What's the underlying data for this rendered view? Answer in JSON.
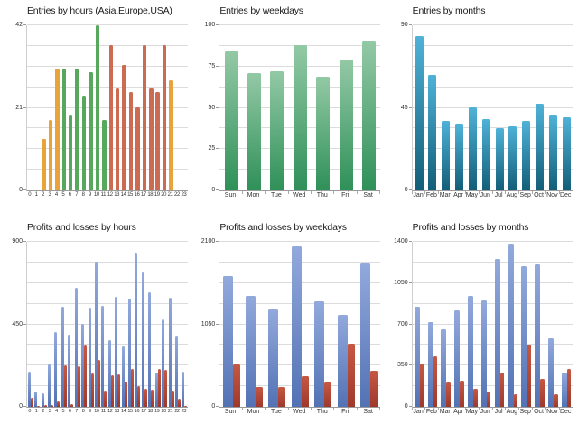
{
  "page": {
    "background": "#ffffff"
  },
  "theme": {
    "gridline_color": "#dcdcdc",
    "axis_color": "#9a9a9a",
    "title_color": "#1a1a1a",
    "tick_label_color": "#333333"
  },
  "chart_data": [
    {
      "type": "bar",
      "title": "Entries by hours (Asia,Europe,USA)",
      "categories": [
        "0",
        "1",
        "2",
        "3",
        "4",
        "5",
        "6",
        "7",
        "8",
        "9",
        "10",
        "11",
        "12",
        "13",
        "14",
        "15",
        "16",
        "17",
        "18",
        "19",
        "20",
        "21",
        "22",
        "23"
      ],
      "values": [
        0,
        0,
        13,
        18,
        31,
        31,
        19,
        31,
        24,
        30,
        42,
        18,
        37,
        26,
        32,
        25,
        21,
        37,
        26,
        25,
        37,
        28,
        0,
        0
      ],
      "bar_groups": [
        null,
        null,
        "asia",
        "asia",
        "asia",
        "europe",
        "europe",
        "europe",
        "europe",
        "europe",
        "europe",
        "europe",
        "usa",
        "usa",
        "usa",
        "usa",
        "usa",
        "usa",
        "usa",
        "usa",
        "usa",
        "asia",
        null,
        null
      ],
      "palette": {
        "asia": "#e8a33c",
        "europe": "#57a85c",
        "usa": "#cd6a52"
      },
      "xlabel": "",
      "ylabel": "",
      "ylim": [
        0,
        42
      ],
      "yticks": [
        0,
        21,
        42
      ],
      "grid_divisions": 8,
      "legend": "none"
    },
    {
      "type": "bar",
      "title": "Entries by weekdays",
      "categories": [
        "Sun",
        "Mon",
        "Tue",
        "Wed",
        "Thu",
        "Fri",
        "Sat"
      ],
      "values": [
        84,
        71,
        72,
        88,
        69,
        79,
        90
      ],
      "bar_gradient": [
        "#93c9a5",
        "#2f9058"
      ],
      "xlabel": "",
      "ylabel": "",
      "ylim": [
        0,
        100
      ],
      "yticks": [
        0,
        25,
        50,
        75,
        100
      ],
      "grid_divisions": 8,
      "legend": "none"
    },
    {
      "type": "bar",
      "title": "Entries by months",
      "categories": [
        "Jan",
        "Feb",
        "Mar",
        "Apr",
        "May",
        "Jun",
        "Jul",
        "Aug",
        "Sep",
        "Oct",
        "Nov",
        "Dec"
      ],
      "values": [
        84,
        63,
        38,
        36,
        45,
        39,
        34,
        35,
        38,
        47,
        41,
        40
      ],
      "bar_gradient": [
        "#4fb2d8",
        "#135e78"
      ],
      "xlabel": "",
      "ylabel": "",
      "ylim": [
        0,
        90
      ],
      "yticks": [
        0,
        45,
        90
      ],
      "grid_divisions": 8,
      "legend": "none"
    },
    {
      "type": "grouped-bar",
      "title": "Profits and losses by hours",
      "categories": [
        "0",
        "1",
        "2",
        "3",
        "4",
        "5",
        "6",
        "7",
        "8",
        "9",
        "10",
        "11",
        "12",
        "13",
        "14",
        "15",
        "16",
        "17",
        "18",
        "19",
        "20",
        "21",
        "22",
        "23"
      ],
      "series": [
        {
          "name": "profits",
          "color_gradient": [
            "#92a9dc",
            "#5372b4"
          ],
          "values": [
            190,
            85,
            75,
            230,
            410,
            545,
            395,
            650,
            450,
            540,
            790,
            550,
            365,
            600,
            330,
            590,
            835,
            735,
            625,
            185,
            475,
            595,
            385,
            190
          ]
        },
        {
          "name": "losses",
          "color_gradient": [
            "#c65843",
            "#9e392c"
          ],
          "values": [
            50,
            5,
            10,
            10,
            30,
            225,
            15,
            220,
            335,
            180,
            255,
            90,
            170,
            175,
            140,
            205,
            115,
            100,
            95,
            205,
            200,
            90,
            45,
            5
          ]
        }
      ],
      "xlabel": "",
      "ylabel": "",
      "ylim": [
        0,
        900
      ],
      "yticks": [
        0,
        450,
        900
      ],
      "grid_divisions": 8,
      "legend": "none"
    },
    {
      "type": "grouped-bar",
      "title": "Profits and losses by weekdays",
      "categories": [
        "Sun",
        "Mon",
        "Tue",
        "Wed",
        "Thu",
        "Fri",
        "Sat"
      ],
      "series": [
        {
          "name": "profits",
          "color_gradient": [
            "#92a9dc",
            "#5372b4"
          ],
          "values": [
            1660,
            1410,
            1240,
            2040,
            1340,
            1170,
            1830
          ]
        },
        {
          "name": "losses",
          "color_gradient": [
            "#c65843",
            "#9e392c"
          ],
          "values": [
            545,
            255,
            255,
            395,
            315,
            805,
            455
          ]
        }
      ],
      "xlabel": "",
      "ylabel": "",
      "ylim": [
        0,
        2100
      ],
      "yticks": [
        0,
        1050,
        2100
      ],
      "grid_divisions": 8,
      "legend": "none"
    },
    {
      "type": "grouped-bar",
      "title": "Profits and losses by months",
      "categories": [
        "Jan",
        "Feb",
        "Mar",
        "Apr",
        "May",
        "Jun",
        "Jul",
        "Aug",
        "Sep",
        "Oct",
        "Nov",
        "Dec"
      ],
      "series": [
        {
          "name": "profits",
          "color_gradient": [
            "#92a9dc",
            "#5372b4"
          ],
          "values": [
            850,
            720,
            660,
            815,
            940,
            900,
            1255,
            1375,
            1195,
            1210,
            580,
            290
          ]
        },
        {
          "name": "losses",
          "color_gradient": [
            "#c65843",
            "#9e392c"
          ],
          "values": [
            365,
            430,
            210,
            220,
            150,
            130,
            290,
            110,
            525,
            235,
            105,
            320
          ]
        }
      ],
      "xlabel": "",
      "ylabel": "",
      "ylim": [
        0,
        1400
      ],
      "yticks": [
        0,
        350,
        700,
        1050,
        1400
      ],
      "grid_divisions": 8,
      "legend": "none"
    }
  ]
}
